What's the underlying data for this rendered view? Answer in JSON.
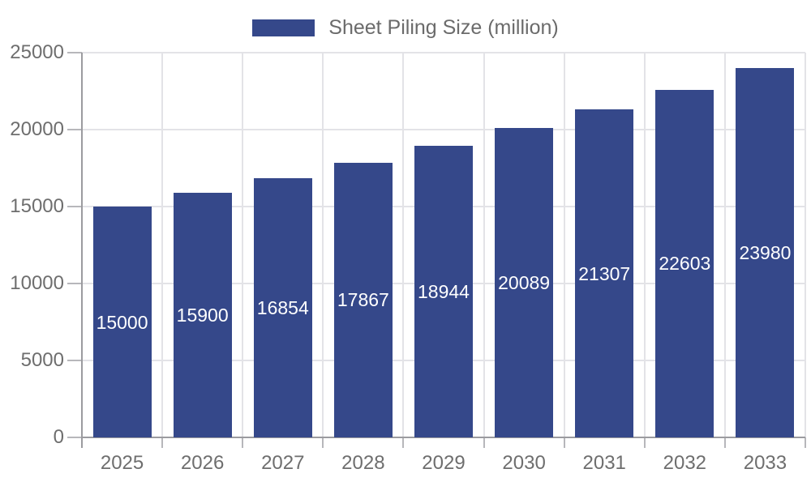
{
  "chart_data": {
    "type": "bar",
    "series_name": "Sheet Piling Size (million)",
    "categories": [
      "2025",
      "2026",
      "2027",
      "2028",
      "2029",
      "2030",
      "2031",
      "2032",
      "2033"
    ],
    "values": [
      15000,
      15900,
      16854,
      17867,
      18944,
      20089,
      21307,
      22603,
      23980
    ],
    "title": "",
    "xlabel": "",
    "ylabel": "",
    "ylim": [
      0,
      25000
    ],
    "yticks": [
      0,
      5000,
      10000,
      15000,
      20000,
      25000
    ],
    "grid": true,
    "legend_position": "top",
    "colors": {
      "bar": "#35488a",
      "value_label": "#ffffff",
      "axis_text": "#6e6e6e",
      "legend_text": "#6b6b6b",
      "gridline": "#e3e3e7",
      "tick": "#b7b7bb",
      "axis_line": "#9b9b9f",
      "background": "#ffffff"
    }
  }
}
